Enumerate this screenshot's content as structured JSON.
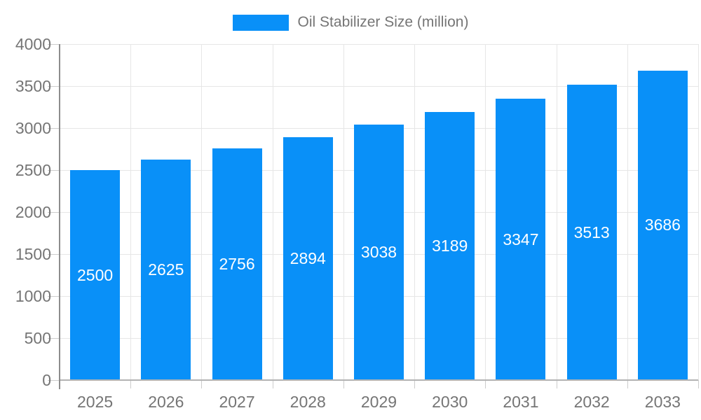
{
  "legend": {
    "label": "Oil Stabilizer Size (million)"
  },
  "chart_data": {
    "type": "bar",
    "title": "",
    "series_name": "Oil Stabilizer Size (million)",
    "categories": [
      "2025",
      "2026",
      "2027",
      "2028",
      "2029",
      "2030",
      "2031",
      "2032",
      "2033"
    ],
    "values": [
      2500,
      2625,
      2756,
      2894,
      3038,
      3189,
      3347,
      3513,
      3686
    ],
    "xlabel": "",
    "ylabel": "",
    "ylim": [
      0,
      4000
    ],
    "yticks": [
      0,
      500,
      1000,
      1500,
      2000,
      2500,
      3000,
      3500,
      4000
    ],
    "grid": true,
    "legend_position": "top",
    "value_labels": "inside-center",
    "colors": {
      "bar": "#0990f8",
      "bar_value_text": "#ffffff",
      "grid": "#e6e6e6",
      "tick": "#cccccc",
      "y_axis_line": "#8c8c8c",
      "baseline": "#b3b3b3",
      "axis_text": "#757575"
    }
  }
}
